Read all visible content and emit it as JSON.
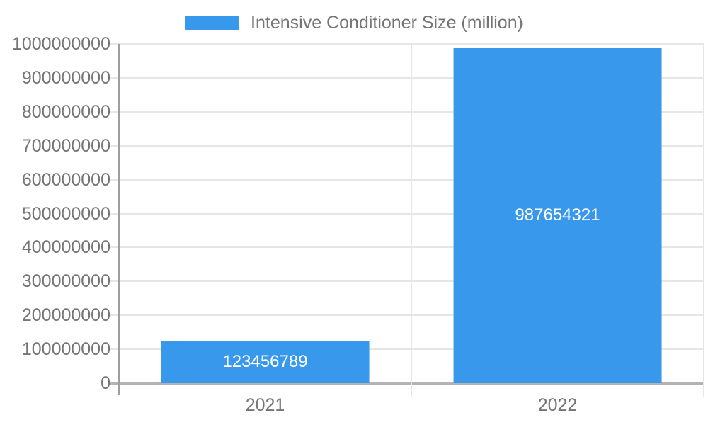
{
  "legend": {
    "label": "Intensive Conditioner Size (million)"
  },
  "colors": {
    "bar": "#3898EC",
    "text": "#757575",
    "value_label": "#ffffff",
    "grid": "#e6e6e6",
    "baseline": "#b3b3b3",
    "axis": "#9e9e9e"
  },
  "chart_data": {
    "type": "bar",
    "title": "Intensive Conditioner Size (million)",
    "categories": [
      "2021",
      "2022"
    ],
    "values": [
      123456789,
      987654321
    ],
    "value_labels": [
      "123456789",
      "987654321"
    ],
    "yticks": [
      "1000000000",
      "900000000",
      "800000000",
      "700000000",
      "600000000",
      "500000000",
      "400000000",
      "300000000",
      "200000000",
      "100000000",
      "0"
    ],
    "ylim": [
      0,
      1000000000
    ],
    "xlabel": "",
    "ylabel": "",
    "grid": true,
    "legend_position": "top-center"
  }
}
